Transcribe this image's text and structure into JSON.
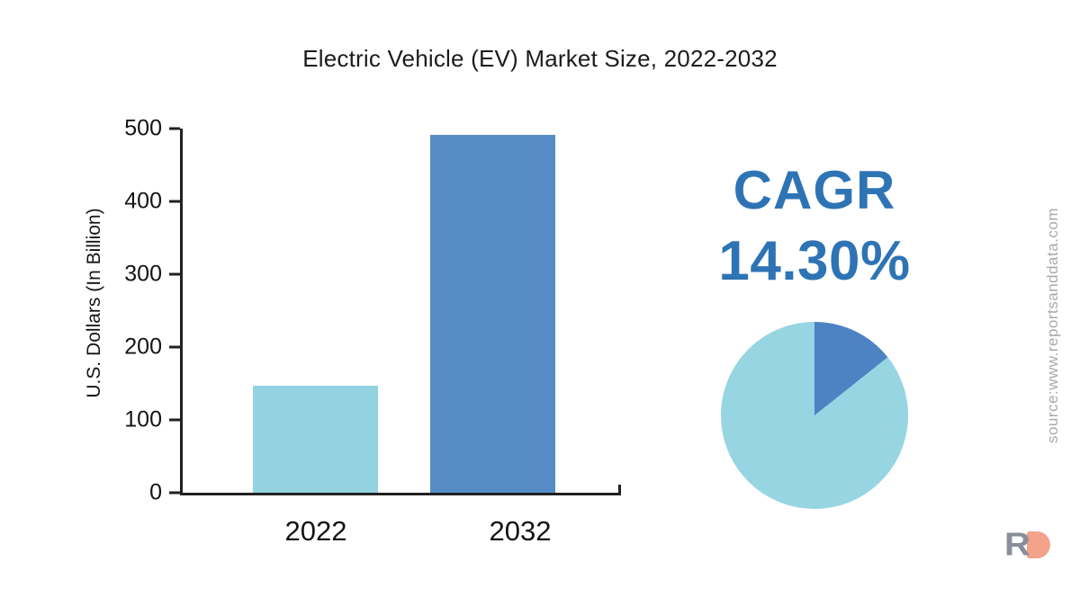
{
  "chart_data": [
    {
      "type": "bar",
      "title": "Electric Vehicle (EV) Market Size, 2022-2032",
      "categories": [
        "2022",
        "2032"
      ],
      "values": [
        147,
        491
      ],
      "xlabel": "",
      "ylabel": "U.S. Dollars (In Billion)",
      "ylim": [
        0,
        500
      ],
      "yticks": [
        "0",
        "100",
        "200",
        "300",
        "400",
        "500"
      ],
      "bar_colors": [
        "#93d2e0",
        "#578dc7"
      ],
      "grid": false,
      "legend": "none"
    },
    {
      "type": "pie",
      "labels": [
        "CAGR slice",
        "remainder"
      ],
      "values": [
        14.3,
        85.7
      ],
      "colors": [
        "#4c83c3",
        "#97d5e3"
      ],
      "start_angle_deg": 0,
      "direction": "clockwise"
    }
  ],
  "cagr": {
    "label": "CAGR",
    "value": "14.30%",
    "color": "#2e74b5"
  },
  "source": {
    "text": "source:www.reportsanddata.com",
    "color": "#a9a9a9"
  },
  "logo": {
    "r_text": "R",
    "r_color": "#898f99",
    "d_color": "#f2a38a"
  }
}
